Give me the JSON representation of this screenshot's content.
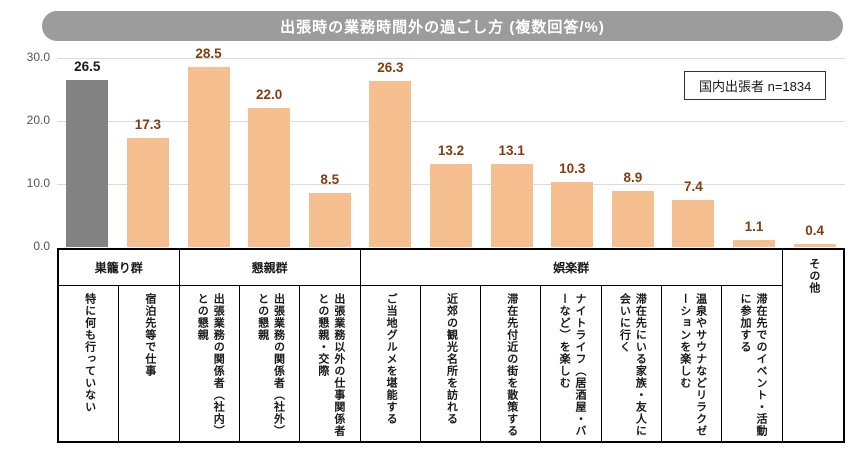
{
  "banner": {
    "title": "出張時の業務時間外の過ごし方 (複数回答/%)"
  },
  "annotation": {
    "label": "国内出張者 n=1834"
  },
  "colors": {
    "banner_bg": "#9c9c9c",
    "bar_gray": "#828282",
    "bar_orange": "#f5bf8f",
    "value_label_orange": "#843c0c",
    "value_label_gray_bar": "#1a1a1a",
    "gridline": "#dcdcdc"
  },
  "y_axis": {
    "tick_labels": [
      "30.0",
      "20.0",
      "10.0",
      "0.0"
    ]
  },
  "chart_data": {
    "type": "bar",
    "title": "出張時の業務時間外の過ごし方 (複数回答/%)",
    "xlabel": "",
    "ylabel": "%",
    "ylim": [
      0,
      30
    ],
    "yticks": [
      30,
      20,
      10,
      0
    ],
    "grid": true,
    "annotation": "国内出張者 n=1834",
    "groups": [
      {
        "label": "巣籠り群",
        "span": 2
      },
      {
        "label": "懇親群",
        "span": 3
      },
      {
        "label": "娯楽群",
        "span": 7
      },
      {
        "label": "その他",
        "span": 1
      }
    ],
    "categories": [
      "特に何も行っていない",
      "宿泊先等で仕事",
      "出張業務の関係者（社内）との懇親",
      "出張業務の関係者（社外）との懇親",
      "出張業務以外の仕事関係者との懇親・交際",
      "ご当地グルメを堪能する",
      "近郊の観光名所を訪れる",
      "滞在先付近の街を散策する",
      "ナイトライフ（居酒屋・バーなど）を楽しむ",
      "滞在先にいる家族・友人に会いに行く",
      "温泉やサウナなどリラクゼーションを楽しむ",
      "滞在先でのイベント・活動に参加する",
      "その他"
    ],
    "values": [
      26.5,
      17.3,
      28.5,
      22.0,
      8.5,
      26.3,
      13.2,
      13.1,
      10.3,
      8.9,
      7.4,
      1.1,
      0.4
    ],
    "bar_color_keys": [
      "gray",
      "orange",
      "orange",
      "orange",
      "orange",
      "orange",
      "orange",
      "orange",
      "orange",
      "orange",
      "orange",
      "orange",
      "orange"
    ]
  }
}
